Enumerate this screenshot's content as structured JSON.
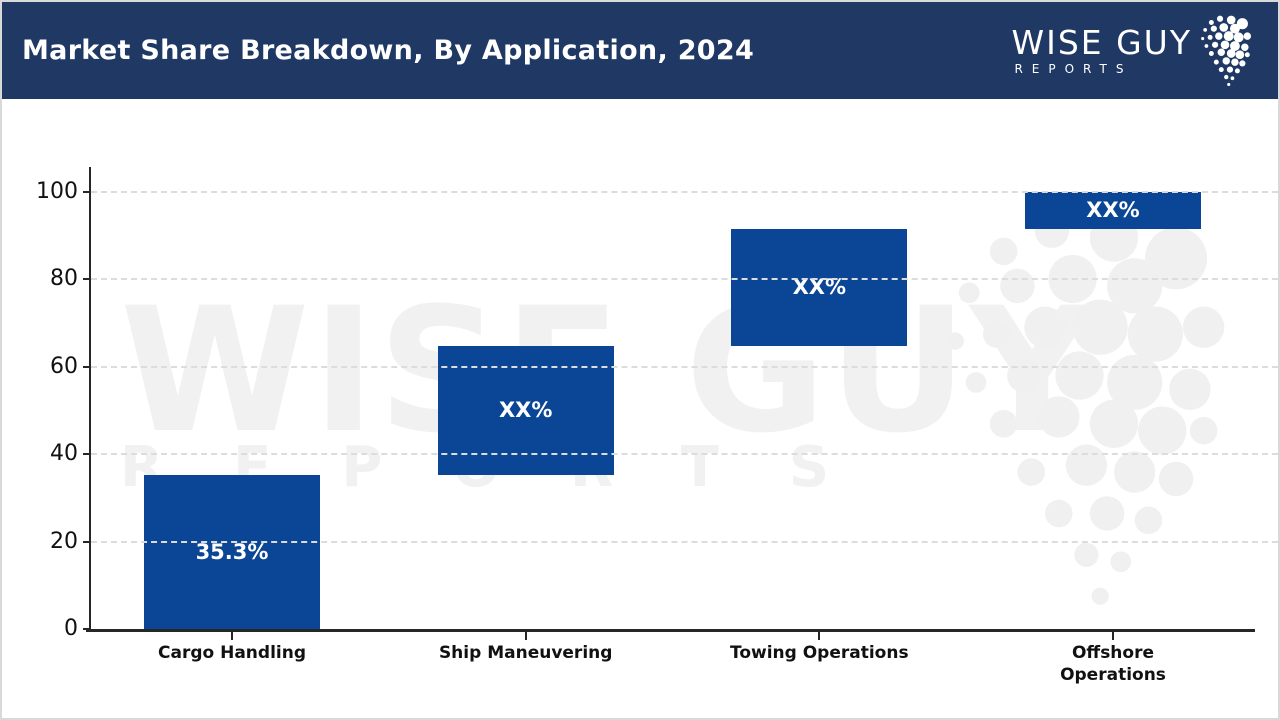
{
  "header": {
    "title": "Market Share Breakdown, By Application, 2024",
    "logo": {
      "line1": "WISE GUY",
      "line2": "REPORTS"
    }
  },
  "watermark": {
    "line1": "WISE GUY",
    "line2": "REPORTS"
  },
  "chart_data": {
    "type": "bar",
    "variant": "waterfall",
    "title": "Market Share Breakdown, By Application, 2024",
    "categories": [
      "Cargo Handling",
      "Ship Maneuvering",
      "Towing Operations",
      "Offshore\nOperations"
    ],
    "series": [
      {
        "name": "Market Share (%)",
        "segments": [
          {
            "category": "Cargo Handling",
            "start": 0,
            "end": 35.3,
            "label": "35.3%"
          },
          {
            "category": "Ship Maneuvering",
            "start": 35.3,
            "end": 64.8,
            "label": "XX%"
          },
          {
            "category": "Towing Operations",
            "start": 64.8,
            "end": 91.4,
            "label": "XX%"
          },
          {
            "category": "Offshore Operations",
            "start": 91.4,
            "end": 100,
            "label": "XX%"
          }
        ]
      }
    ],
    "xlabel": "",
    "ylabel": "",
    "yticks": [
      0,
      20,
      40,
      60,
      80,
      100
    ],
    "ylim": [
      0,
      105
    ],
    "grid": "horizontal dashed, drawn above bars",
    "legend": false,
    "bar_color": "#0a4596",
    "bar_label_color": "#ffffff"
  },
  "colors": {
    "header_bg": "#1f3864",
    "bar": "#0a4596",
    "grid": "#dcdcdc",
    "axis": "#262626",
    "watermark": "#f1f1f1",
    "title_text": "#ffffff",
    "tick_label": "#111111",
    "frame_border": "#d9d9d9"
  }
}
